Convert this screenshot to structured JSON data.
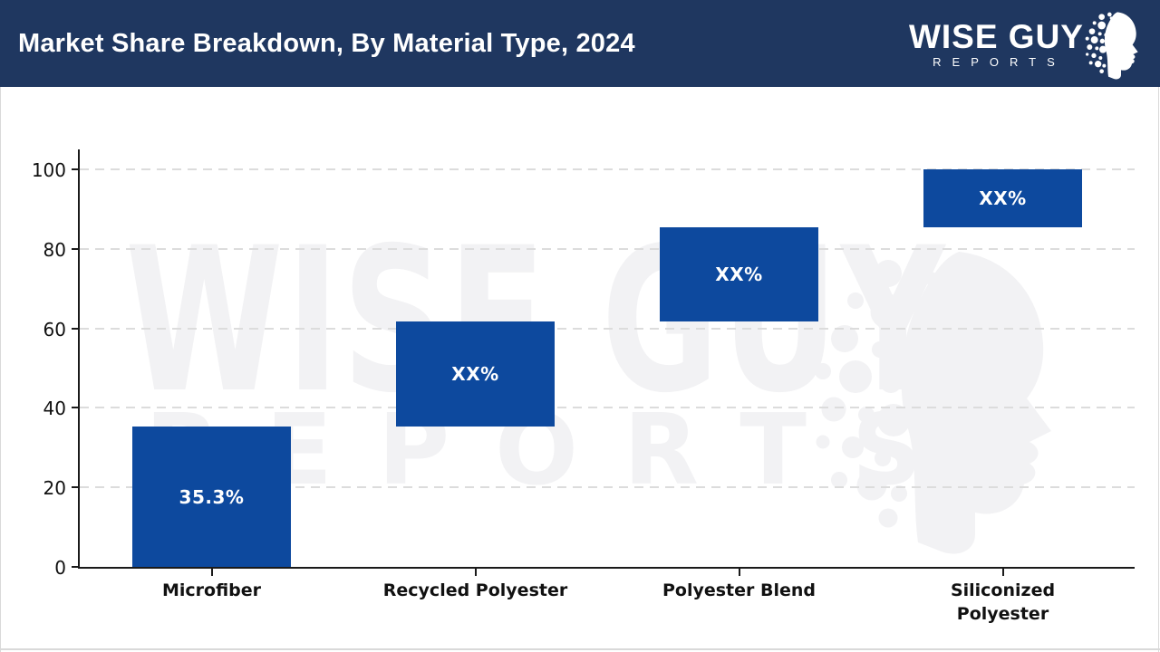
{
  "header": {
    "title": "Market Share Breakdown, By Material Type, 2024",
    "logo": {
      "line1": "WISE GUY",
      "line2": "REPORTS"
    },
    "background": "#1f3760"
  },
  "watermark": {
    "line1": "WISE GUY",
    "line2": "REPORTS"
  },
  "chart_data": {
    "type": "bar",
    "subtype": "waterfall",
    "title": "Market Share Breakdown, By Material Type, 2024",
    "categories": [
      "Microfiber",
      "Recycled Polyester",
      "Polyester Blend",
      "Siliconized\nPolyester"
    ],
    "segments": [
      {
        "category": "Microfiber",
        "start": 0,
        "end": 35.3,
        "value": 35.3,
        "label": "35.3%"
      },
      {
        "category": "Recycled Polyester",
        "start": 35.3,
        "end": 61.7,
        "value": 26.4,
        "label": "XX%"
      },
      {
        "category": "Polyester Blend",
        "start": 61.7,
        "end": 85.5,
        "value": 23.8,
        "label": "XX%"
      },
      {
        "category": "Siliconized Polyester",
        "start": 85.5,
        "end": 100.0,
        "value": 14.5,
        "label": "XX%"
      }
    ],
    "yticks": [
      0,
      20,
      40,
      60,
      80,
      100
    ],
    "ylim": [
      0,
      105
    ],
    "xlabel": "",
    "ylabel": "",
    "grid": "horizontal-dashed",
    "legend": "none",
    "bar_color": "#0d499e",
    "bar_label_color": "#ffffff",
    "axis_color": "#1a1a1a",
    "gridline_color": "#dcdcdc"
  }
}
